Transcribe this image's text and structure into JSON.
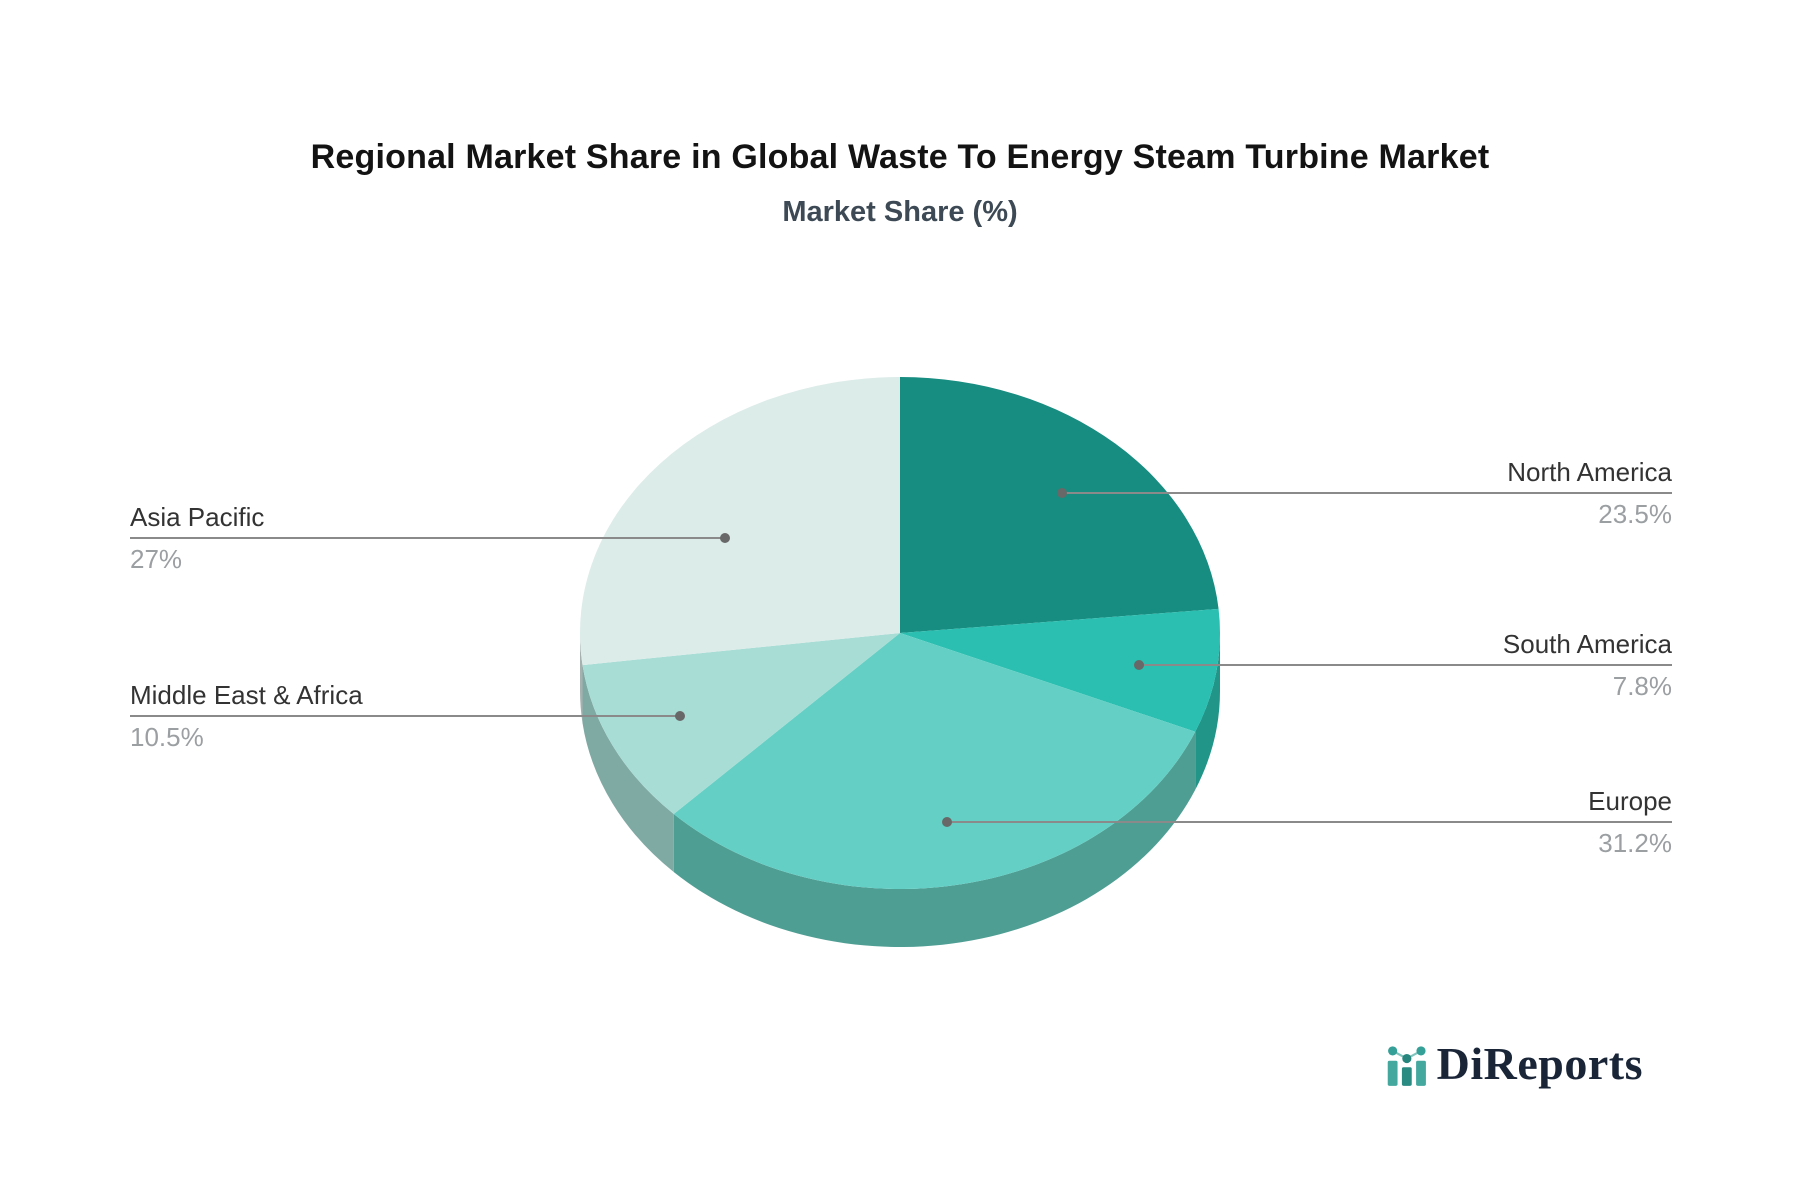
{
  "header": {
    "title": "Regional Market Share in Global Waste To Energy Steam Turbine Market",
    "subtitle": "Market Share (%)"
  },
  "chart_data": {
    "type": "pie",
    "style": "3d",
    "title": "Regional Market Share in Global Waste To Energy Steam Turbine Market",
    "subtitle": "Market Share (%)",
    "unit": "%",
    "start_angle_deg": 0,
    "direction": "clockwise",
    "legend_position": "callout-labels",
    "slices": [
      {
        "label": "North America",
        "value": 23.5,
        "display": "23.5%",
        "color": "#178C80",
        "side_color": "#11695F"
      },
      {
        "label": "South America",
        "value": 7.8,
        "display": "7.8%",
        "color": "#2BBFB1",
        "side_color": "#219588"
      },
      {
        "label": "Europe",
        "value": 31.2,
        "display": "31.2%",
        "color": "#64D0C5",
        "side_color": "#4F9E94"
      },
      {
        "label": "Middle East & Africa",
        "value": 10.5,
        "display": "10.5%",
        "color": "#A8DDD6",
        "side_color": "#7FA9A3"
      },
      {
        "label": "Asia Pacific",
        "value": 27,
        "display": "27%",
        "color": "#DCECE9",
        "side_color": "#A5B1AF"
      }
    ],
    "callout_colors": {
      "line": "#8A8A8A",
      "dot": "#686868",
      "label_text": "#333333",
      "value_text": "#9B9FA2"
    }
  },
  "logo": {
    "text": "DiReports",
    "icon": "bar-chart-with-trend-dots",
    "text_color": "#1A2638",
    "teal": "#3AA79D",
    "dark_teal": "#27867D"
  }
}
